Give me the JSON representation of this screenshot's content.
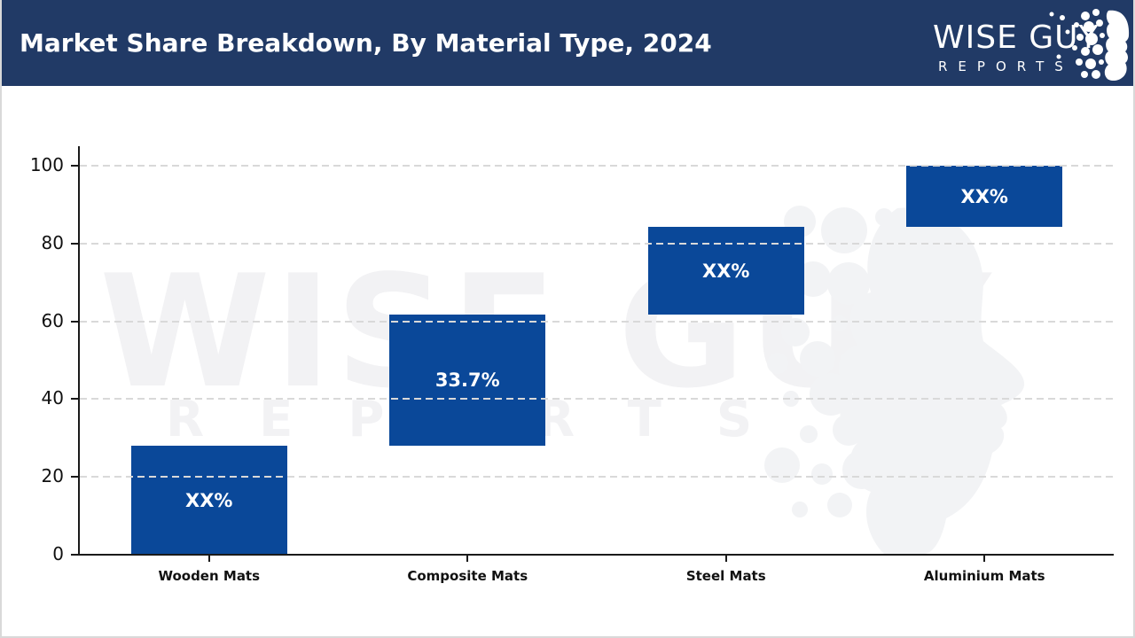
{
  "header": {
    "title": "Market Share Breakdown, By Material Type, 2024",
    "logo": {
      "name_top": "WISE GUY",
      "name_bottom": "REPORTS"
    }
  },
  "watermark": {
    "text_large": "WISE GUY",
    "text_small": "REPORTS"
  },
  "colors": {
    "header_bg": "#213a66",
    "bar_fill": "#0a4899",
    "bar_label_text": "#ffffff",
    "axis": "#1a1a1a",
    "gridline": "#d9d9d9",
    "watermark": "#f2f2f4",
    "page_bg": "#ffffff"
  },
  "chart_data": {
    "type": "bar",
    "subtype": "waterfall-floating-bars",
    "title": "Market Share Breakdown, By Material Type, 2024",
    "categories": [
      "Wooden Mats",
      "Composite Mats",
      "Steel Mats",
      "Aluminium Mats"
    ],
    "segments": [
      {
        "category": "Wooden Mats",
        "start": 0,
        "end": 28,
        "label": "XX%"
      },
      {
        "category": "Composite Mats",
        "start": 28,
        "end": 61.7,
        "label": "33.7%",
        "value": 33.7
      },
      {
        "category": "Steel Mats",
        "start": 61.7,
        "end": 84.2,
        "label": "XX%"
      },
      {
        "category": "Aluminium Mats",
        "start": 84.2,
        "end": 100,
        "label": "XX%"
      }
    ],
    "xlabel": "",
    "ylabel": "",
    "ylim": [
      0,
      100
    ],
    "yticks": [
      0,
      20,
      40,
      60,
      80,
      100
    ],
    "grid": "horizontal-dashed",
    "legend": "none"
  }
}
